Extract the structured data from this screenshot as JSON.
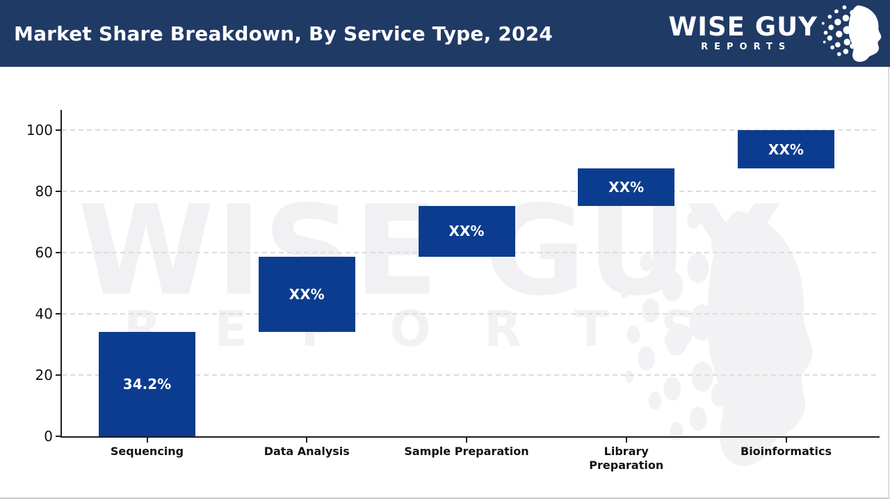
{
  "header": {
    "title": "Market Share Breakdown, By Service Type, 2024",
    "bg_color": "#203a66",
    "logo": {
      "line1": "WISE GUY",
      "line2": "REPORTS"
    }
  },
  "watermark": {
    "line1": "WISE GUY",
    "line2": "R E P O R T S"
  },
  "chart_data": {
    "type": "bar",
    "subtype": "waterfall",
    "title": "Market Share Breakdown, By Service Type, 2024",
    "xlabel": "",
    "ylabel": "",
    "ylim": [
      0,
      100
    ],
    "yticks": [
      0,
      20,
      40,
      60,
      80,
      100
    ],
    "grid": "horizontal-dashed",
    "bar_color": "#0c3c8f",
    "categories": [
      "Sequencing",
      "Data Analysis",
      "Sample Preparation",
      "Library\nPreparation",
      "Bioinformatics"
    ],
    "segments": [
      {
        "category": "Sequencing",
        "start": 0,
        "end": 34.2,
        "label": "34.2%"
      },
      {
        "category": "Data Analysis",
        "start": 34.2,
        "end": 58.7,
        "label": "XX%"
      },
      {
        "category": "Sample Preparation",
        "start": 58.7,
        "end": 75.2,
        "label": "XX%"
      },
      {
        "category": "Library Preparation",
        "start": 75.2,
        "end": 87.4,
        "label": "XX%"
      },
      {
        "category": "Bioinformatics",
        "start": 87.4,
        "end": 100,
        "label": "XX%"
      }
    ]
  }
}
